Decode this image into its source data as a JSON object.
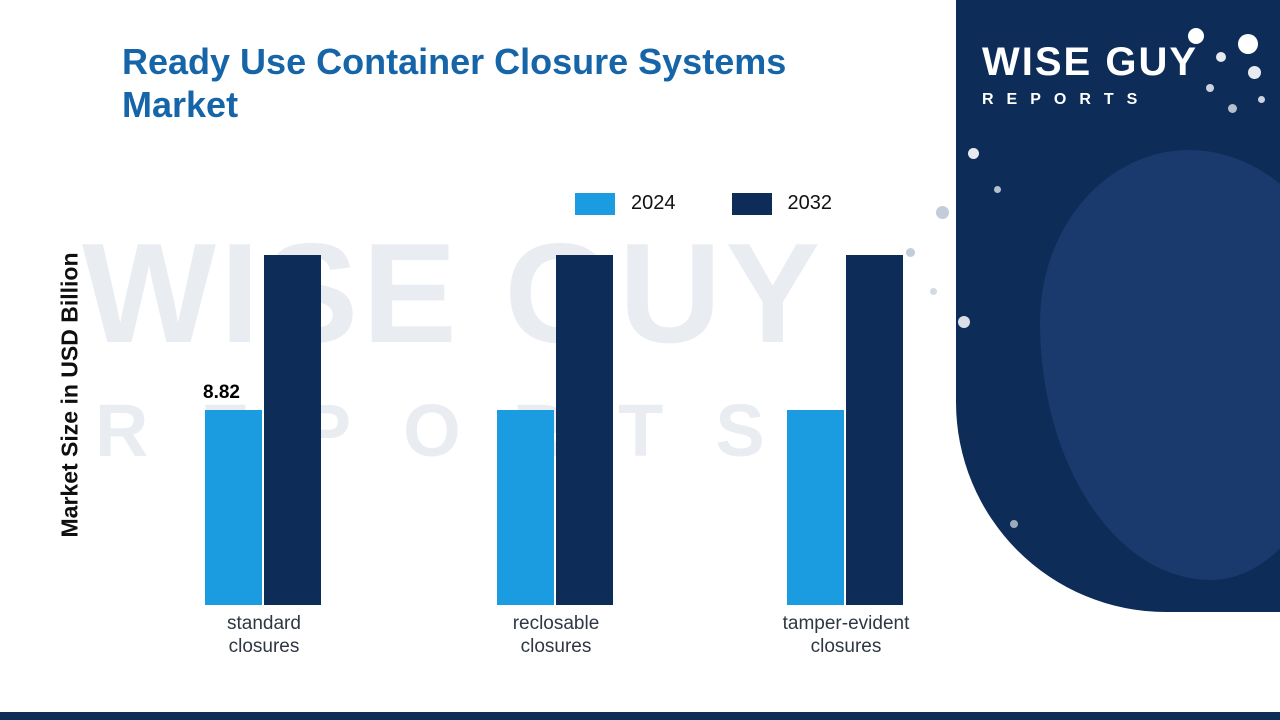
{
  "header": {
    "title_line1": "Ready Use Container Closure Systems",
    "title_line2": "Market"
  },
  "logo": {
    "name": "WISE GUY",
    "tagline": "REPORTS"
  },
  "watermark": {
    "line1": "WISE GUY",
    "line2": "REPORTS"
  },
  "colors": {
    "accent_blue": "#1b9ce0",
    "navy": "#0d2c58",
    "title_blue": "#1565a8",
    "watermark_gray": "#e9edf2"
  },
  "chart_data": {
    "type": "bar",
    "title": "Ready Use Container Closure Systems Market",
    "xlabel": "",
    "ylabel": "Market Size in USD Billion",
    "categories": [
      "standard closures",
      "reclosable closures",
      "tamper-evident closures"
    ],
    "series": [
      {
        "name": "2024",
        "color": "#1b9ce0",
        "values": [
          8.82,
          8.82,
          8.82
        ]
      },
      {
        "name": "2032",
        "color": "#0d2c58",
        "values": [
          15.8,
          15.8,
          15.8
        ]
      }
    ],
    "value_labels": [
      {
        "series": "2024",
        "category_index": 0,
        "text": "8.82"
      }
    ],
    "legend_position": "top",
    "grid": false,
    "ylim": [
      0,
      16
    ]
  }
}
